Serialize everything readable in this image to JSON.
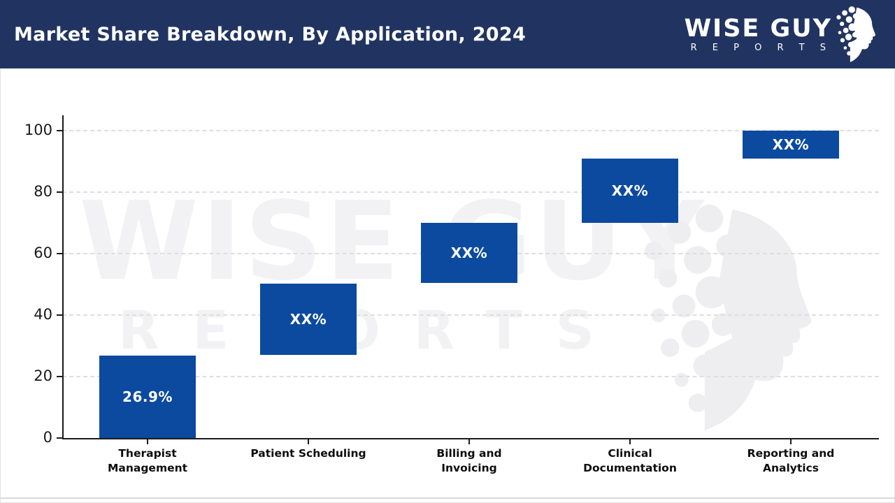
{
  "header": {
    "title": "Market Share Breakdown, By Application, 2024",
    "background": "#213461",
    "logo": {
      "line1": "WISE GUY",
      "line2": "R E P O R T S"
    }
  },
  "watermark": {
    "line1": "WISE GUY",
    "line2": "REPORTS"
  },
  "chart_data": {
    "type": "bar",
    "subtype": "waterfall",
    "title": "Market Share Breakdown, By Application, 2024",
    "xlabel": "",
    "ylabel": "",
    "ylim": [
      0,
      105
    ],
    "yticks": [
      0,
      20,
      40,
      60,
      80,
      100
    ],
    "grid": true,
    "grid_style": "dashed",
    "legend": false,
    "bar_color": "#0b4a9e",
    "label_color": "#ffffff",
    "categories": [
      "Therapist Management",
      "Patient Scheduling",
      "Billing and Invoicing",
      "Clinical Documentation",
      "Reporting and Analytics"
    ],
    "segments": [
      {
        "category": "Therapist Management",
        "label_lines": [
          "Therapist",
          "Management"
        ],
        "start": 0,
        "end": 26.9,
        "label": "26.9%"
      },
      {
        "category": "Patient Scheduling",
        "label_lines": [
          "Patient Scheduling"
        ],
        "start": 27,
        "end": 50.2,
        "label": "XX%"
      },
      {
        "category": "Billing and Invoicing",
        "label_lines": [
          "Billing and",
          "Invoicing"
        ],
        "start": 50.5,
        "end": 70,
        "label": "XX%"
      },
      {
        "category": "Clinical Documentation",
        "label_lines": [
          "Clinical",
          "Documentation"
        ],
        "start": 70,
        "end": 91,
        "label": "XX%"
      },
      {
        "category": "Reporting and Analytics",
        "label_lines": [
          "Reporting and",
          "Analytics"
        ],
        "start": 91,
        "end": 100,
        "label": "XX%"
      }
    ]
  }
}
